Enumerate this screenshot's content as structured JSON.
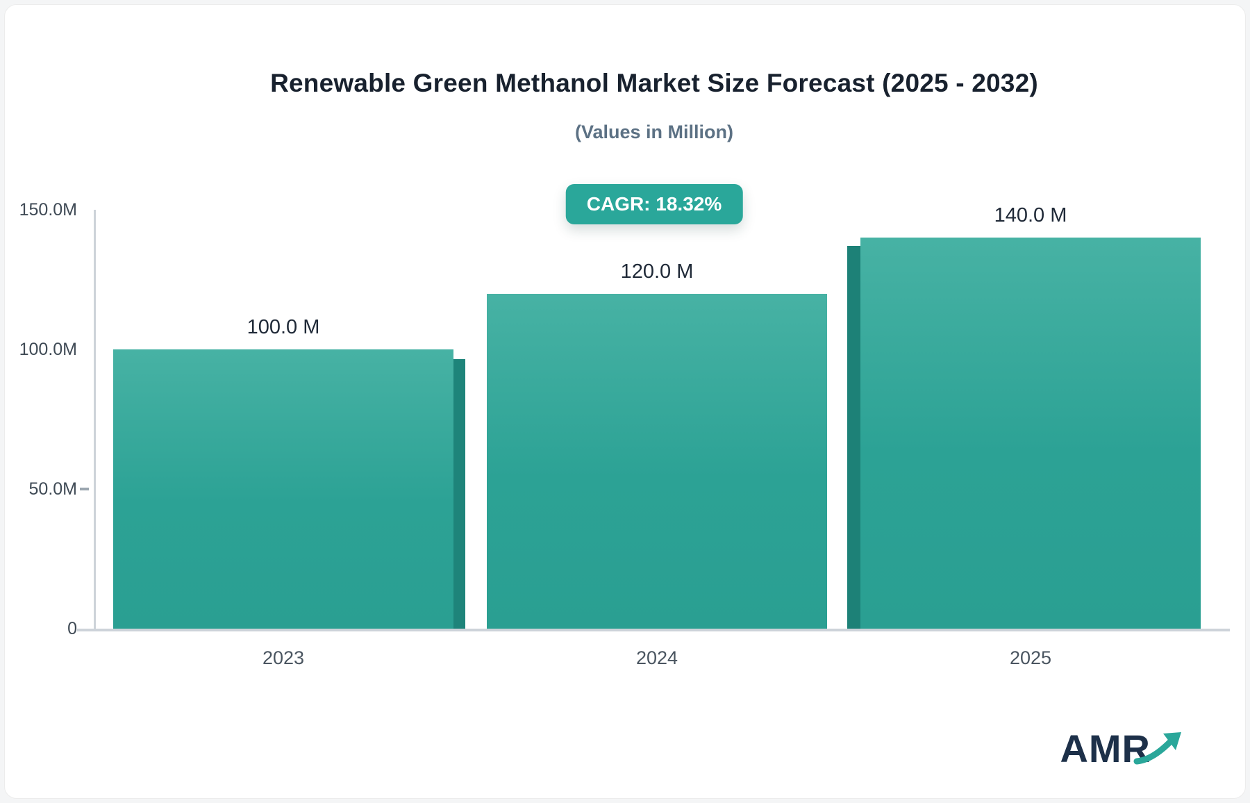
{
  "header": {
    "title": "Renewable Green Methanol Market Size Forecast (2025 - 2032)",
    "subtitle": "(Values in Million)"
  },
  "badge": {
    "label": "CAGR: 18.32%"
  },
  "logo": {
    "text": "AMR"
  },
  "colors": {
    "bar_top": "#47b2a4",
    "bar_bottom": "#2a9f92",
    "bar_side": "#1e847a",
    "badge_bg": "#2aa79a",
    "title_text": "#18212e",
    "subtitle_text": "#5c7184",
    "axis": "#cdd3d9",
    "logo_navy": "#1d3049",
    "logo_arrow": "#2aa79a"
  },
  "chart_data": {
    "type": "bar",
    "title": "Renewable Green Methanol Market Size Forecast (2025 - 2032)",
    "subtitle": "(Values in Million)",
    "unit": "Million",
    "cagr": "18.32%",
    "categories": [
      "2023",
      "2024",
      "2025"
    ],
    "values": [
      100.0,
      120.0,
      140.0
    ],
    "value_labels": [
      "100.0 M",
      "120.0 M",
      "140.0 M"
    ],
    "ylim": [
      0,
      150
    ],
    "yticks": [
      {
        "value": 0,
        "label": "0"
      },
      {
        "value": 50,
        "label": "50.0M"
      },
      {
        "value": 100,
        "label": "100.0M"
      },
      {
        "value": 150,
        "label": "150.0M"
      }
    ],
    "grid": false,
    "legend": "none"
  }
}
